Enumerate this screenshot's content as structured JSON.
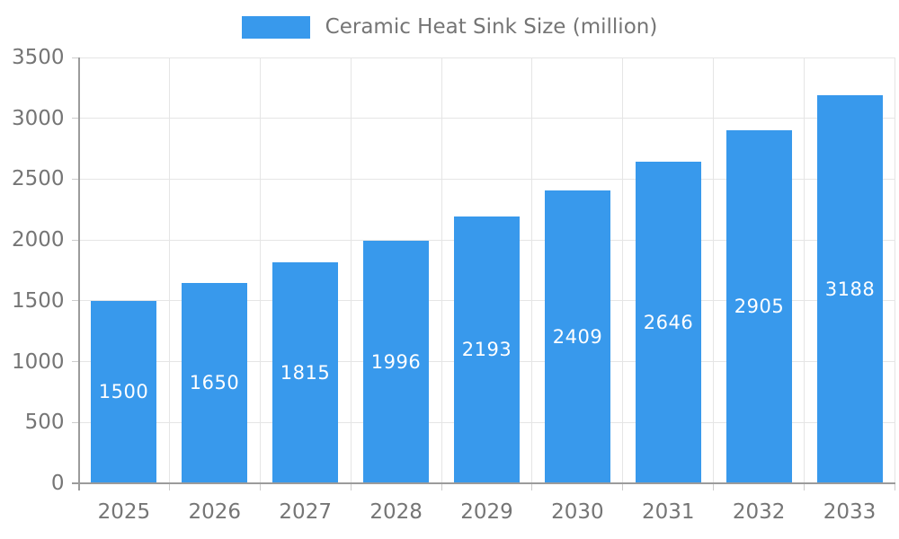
{
  "legend": {
    "label": "Ceramic Heat Sink Size (million)"
  },
  "chart_data": {
    "type": "bar",
    "title": "Ceramic Heat Sink Size (million)",
    "xlabel": "",
    "ylabel": "",
    "categories": [
      "2025",
      "2026",
      "2027",
      "2028",
      "2029",
      "2030",
      "2031",
      "2032",
      "2033"
    ],
    "values": [
      1500,
      1650,
      1815,
      1996,
      2193,
      2409,
      2646,
      2905,
      3188
    ],
    "value_labels_shown": [
      "1500",
      "1650",
      "1815",
      "1996",
      "2193",
      "2409",
      "2646",
      "2905",
      "3188"
    ],
    "ylim": [
      0,
      3500
    ],
    "yticks": [
      0,
      500,
      1000,
      1500,
      2000,
      2500,
      3000,
      3500
    ],
    "grid": true,
    "legend_position": "top",
    "value_label_position": "inside-center",
    "colors": {
      "bar": "#3899EC",
      "axis_text": "#757575",
      "grid_line": "#E5E5E5",
      "tick_line": "#CCCCCC",
      "axis_line": "#9B9B9B",
      "value_label": "#FFFFFF",
      "background": "#FFFFFF"
    }
  }
}
